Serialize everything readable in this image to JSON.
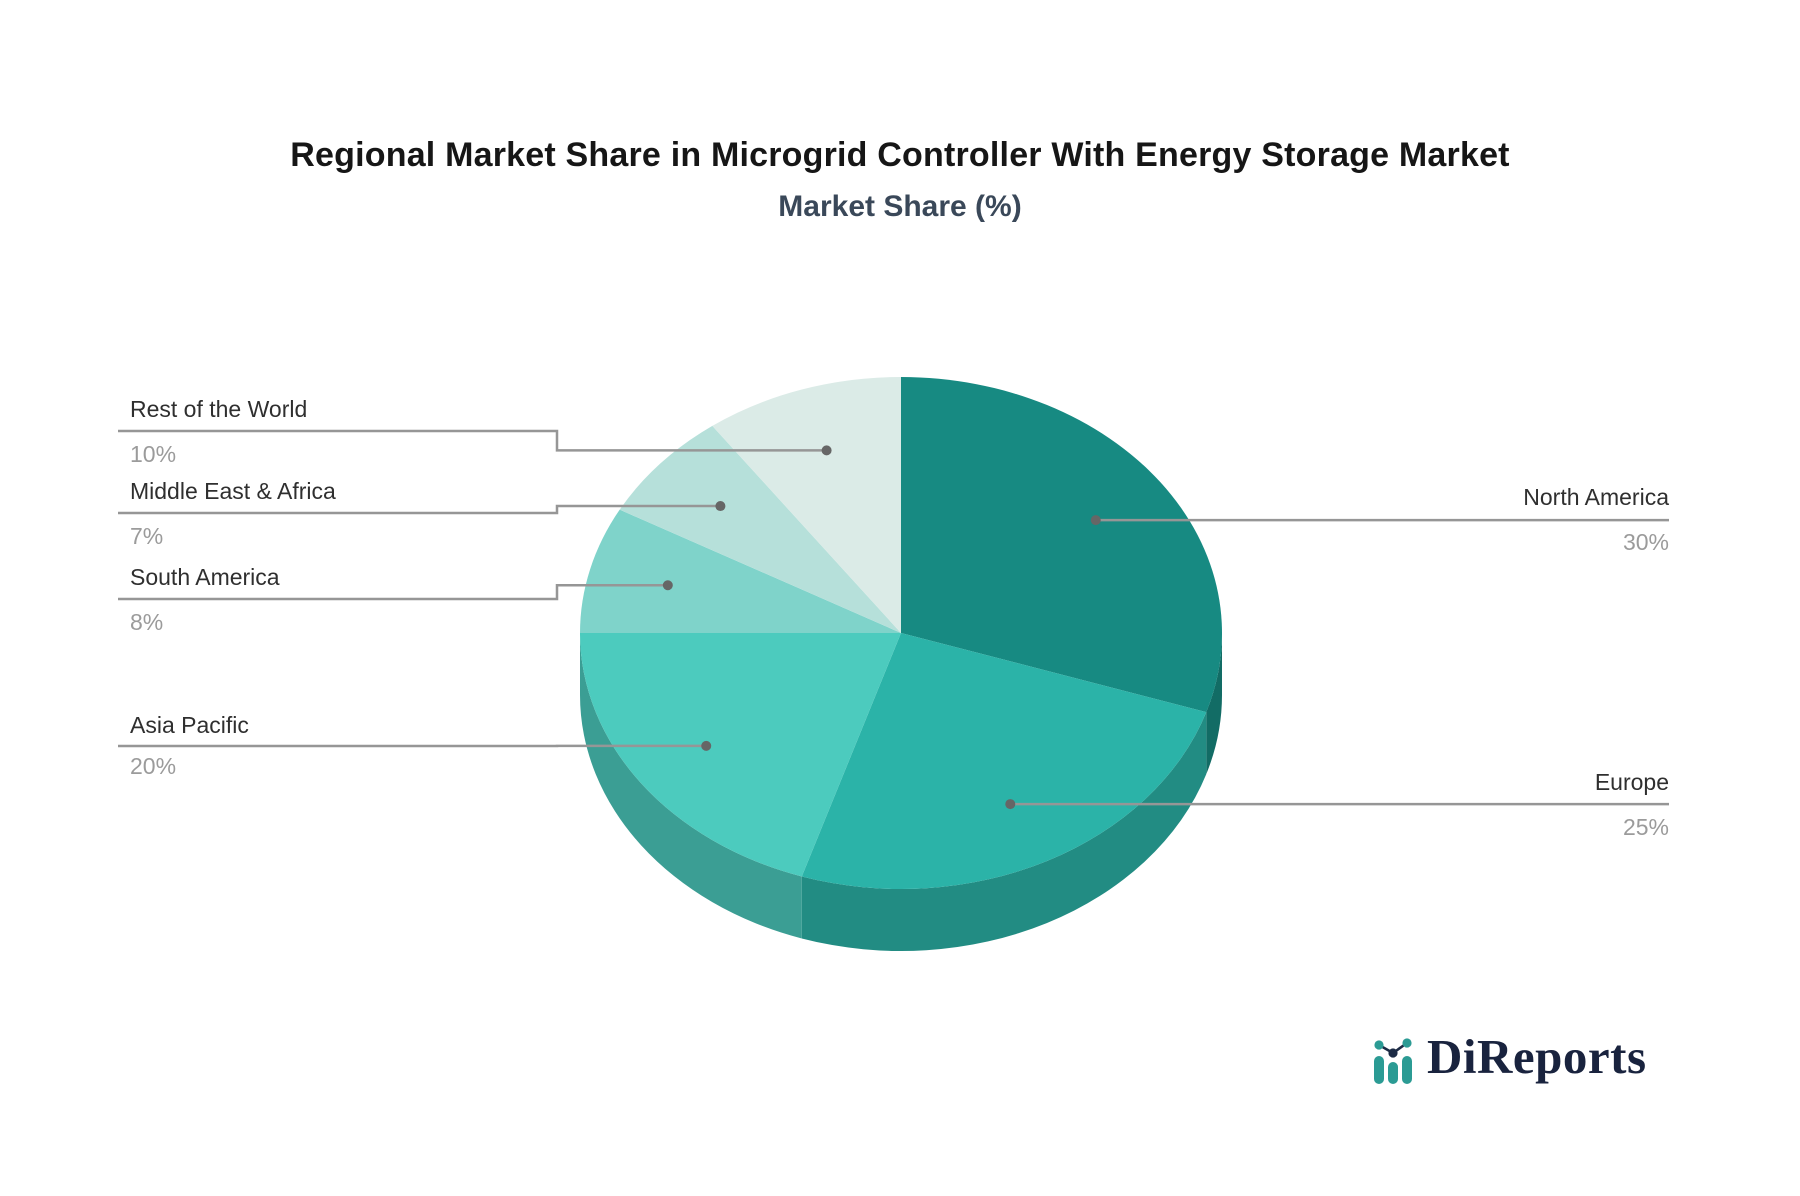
{
  "header": {
    "title": "Regional Market Share in Microgrid Controller With Energy Storage Market",
    "subtitle": "Market Share (%)"
  },
  "chart_data": {
    "type": "pie",
    "title": "Regional Market Share in Microgrid Controller With Energy Storage Market",
    "subtitle": "Market Share (%)",
    "unit": "%",
    "style": "3d-pie",
    "start_angle_deg": 0,
    "direction": "clockwise",
    "legend_position": "connected-labels",
    "series": [
      {
        "label": "North America",
        "value": 30,
        "color": "#178A82",
        "label_side": "right"
      },
      {
        "label": "Europe",
        "value": 25,
        "color": "#2BB3A8",
        "label_side": "right"
      },
      {
        "label": "Asia Pacific",
        "value": 20,
        "color": "#4CCBBE",
        "label_side": "left"
      },
      {
        "label": "South America",
        "value": 8,
        "color": "#7FD3CA",
        "label_side": "left"
      },
      {
        "label": "Middle East & Africa",
        "value": 7,
        "color": "#B6E0DA",
        "label_side": "left"
      },
      {
        "label": "Rest of the World",
        "value": 10,
        "color": "#DBEBE7",
        "label_side": "left"
      }
    ],
    "connector_color": "#969696",
    "connector_dot_color": "#666666"
  },
  "logo": {
    "text": "DiReports",
    "icon": "bar-line-chart-icon",
    "icon_bar_color": "#2B9B94",
    "icon_line_color": "#1C2B45",
    "text_color": "#19233E"
  }
}
